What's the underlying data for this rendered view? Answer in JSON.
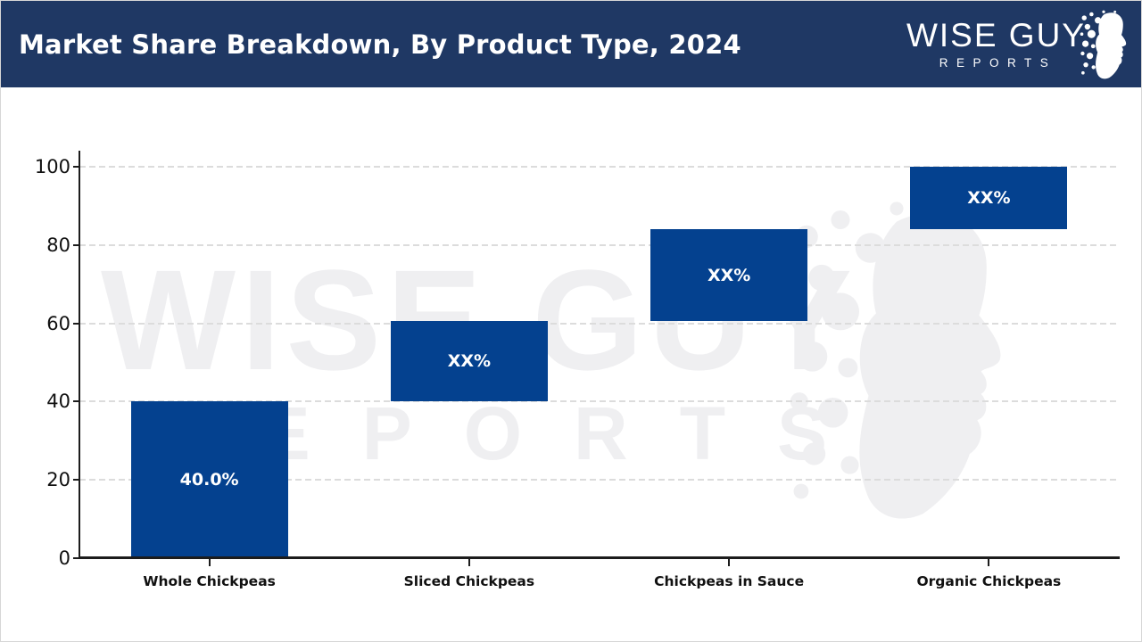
{
  "header": {
    "title": "Market Share Breakdown, By Product Type, 2024",
    "logo": {
      "line1": "WISE GUY",
      "line2": "REPORTS"
    }
  },
  "watermark": {
    "line1": "WISE GUY",
    "line2": "REPORTS"
  },
  "chart_data": {
    "type": "bar",
    "subtype": "waterfall",
    "title": "Market Share Breakdown, By Product Type, 2024",
    "categories": [
      "Whole Chickpeas",
      "Sliced Chickpeas",
      "Chickpeas in Sauce",
      "Organic Chickpeas"
    ],
    "segments": [
      {
        "category": "Whole Chickpeas",
        "start": 0,
        "end": 40,
        "label": "40.0%"
      },
      {
        "category": "Sliced Chickpeas",
        "start": 40,
        "end": 60.5,
        "label": "XX%"
      },
      {
        "category": "Chickpeas in Sauce",
        "start": 60.5,
        "end": 84,
        "label": "XX%"
      },
      {
        "category": "Organic Chickpeas",
        "start": 84,
        "end": 100,
        "label": "XX%"
      }
    ],
    "ylim": [
      0,
      100
    ],
    "yticks": [
      0,
      20,
      40,
      60,
      80,
      100
    ],
    "grid": "horizontal-dashed",
    "legend": "none",
    "bar_color": "#04418f",
    "bar_label_color": "#ffffff"
  },
  "colors": {
    "header_bg": "#1f3864",
    "bar": "#04418f",
    "axis": "#1c1c1c",
    "grid": "#dcdcdc",
    "watermark": "#efeff1"
  }
}
